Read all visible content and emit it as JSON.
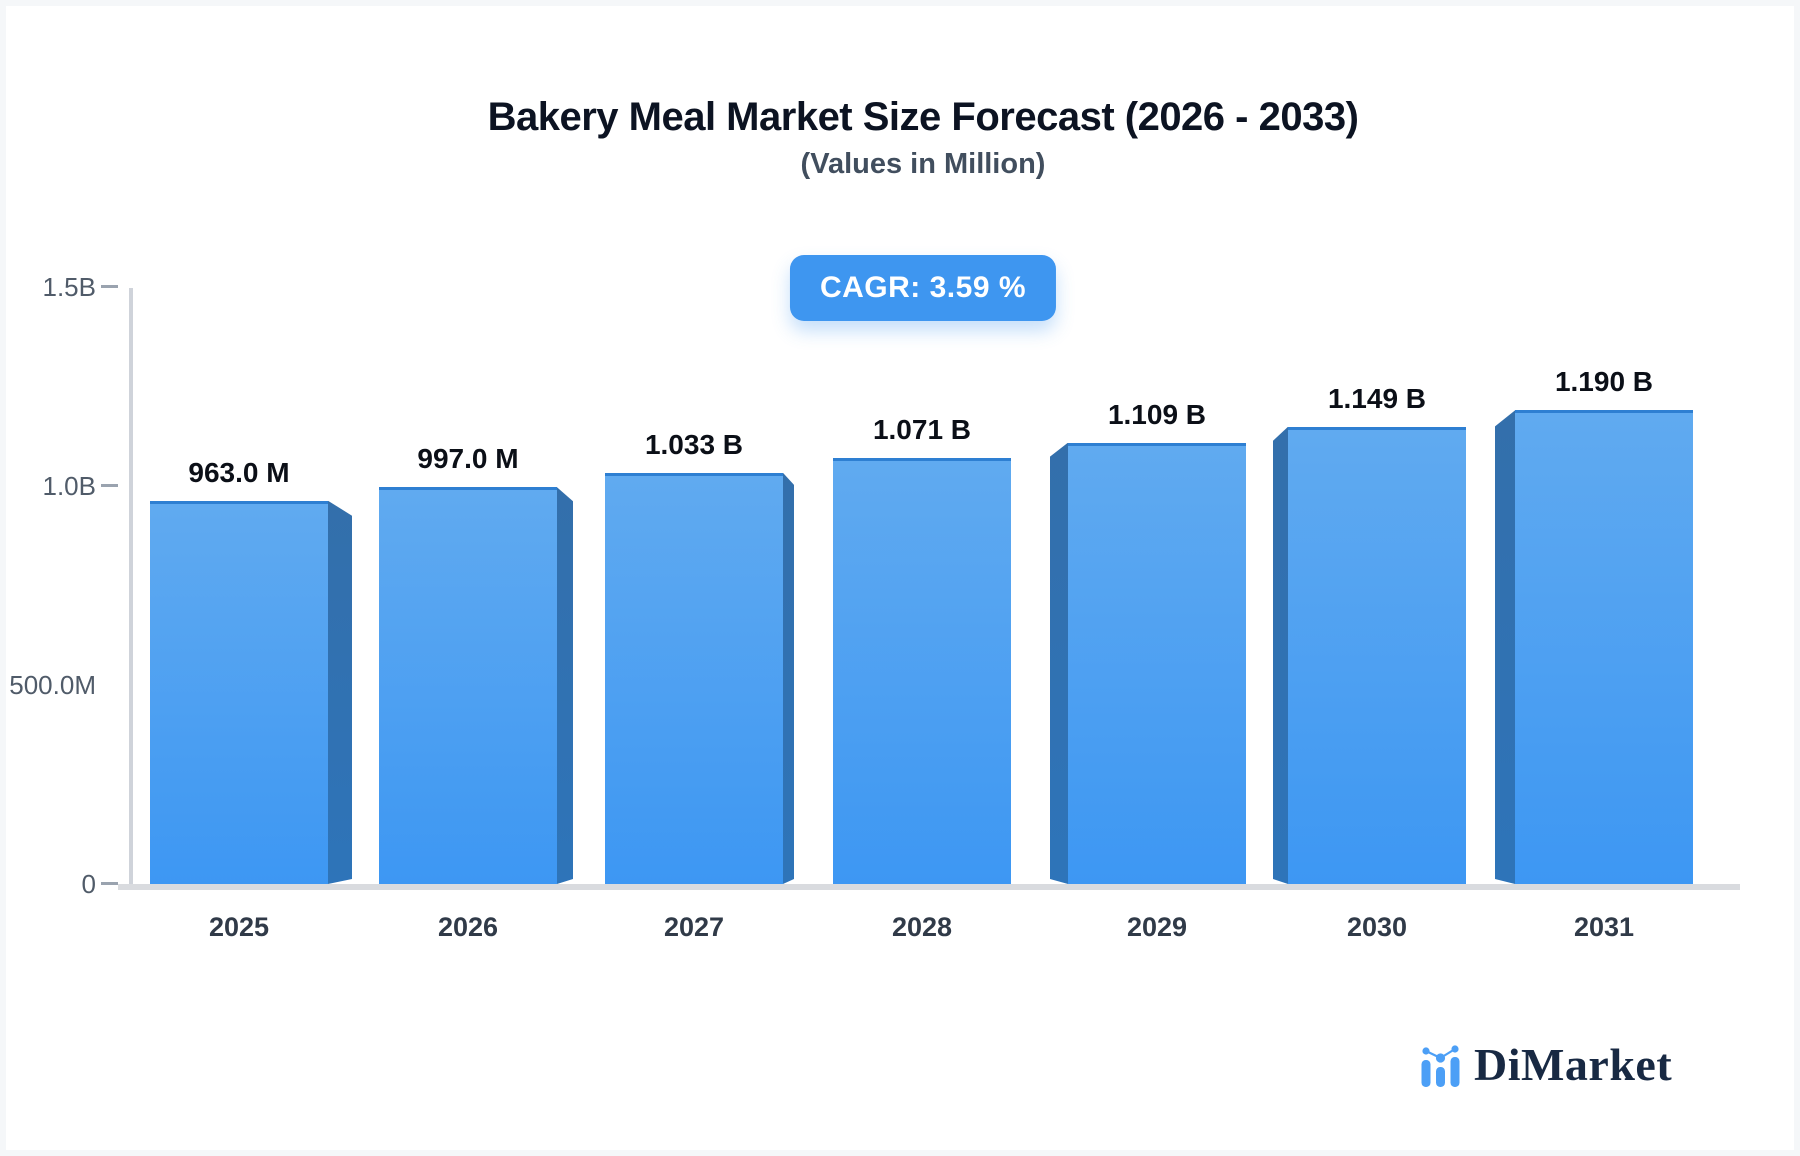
{
  "header": {
    "title": "Bakery Meal Market Size Forecast (2026 - 2033)",
    "subtitle": "(Values in Million)",
    "cagr_label": "CAGR: 3.59 %"
  },
  "brand": {
    "name": "DiMarket",
    "icon": "dimarket-bars-icon",
    "navy": "#182943",
    "blue": "#4c9ff6"
  },
  "chart_data": {
    "type": "bar",
    "title": "Bakery Meal Market Size Forecast (2026 - 2033)",
    "subtitle": "(Values in Million)",
    "cagr_percent": 3.59,
    "categories": [
      "2025",
      "2026",
      "2027",
      "2028",
      "2029",
      "2030",
      "2031"
    ],
    "values_millions": [
      963,
      997,
      1033,
      1071,
      1109,
      1149,
      1190
    ],
    "bar_labels": [
      "963.0 M",
      "997.0 M",
      "1.033 B",
      "1.071 B",
      "1.109 B",
      "1.149 B",
      "1.190 B"
    ],
    "ylabel": "",
    "xlabel": "",
    "ylim_millions": [
      0,
      1500
    ],
    "grid": false,
    "y_ticks": [
      {
        "label": "1.5B",
        "value": 1500,
        "tick": true
      },
      {
        "label": "1.0B",
        "value": 1000,
        "tick": true
      },
      {
        "label": "500.0M",
        "value": 500,
        "tick": false
      },
      {
        "label": "0",
        "value": 0,
        "tick": true
      }
    ],
    "colors": {
      "bar_face_top": "#60aaf0",
      "bar_face_bottom": "#3d97f3",
      "bar_top_edge": "#2e7fd2",
      "bar_side_top": "#336fab",
      "bar_side_bottom": "#2e74b9",
      "accent": "#3e96f0",
      "axis": "#cfd3da",
      "baseline": "#d9dbdf"
    }
  }
}
